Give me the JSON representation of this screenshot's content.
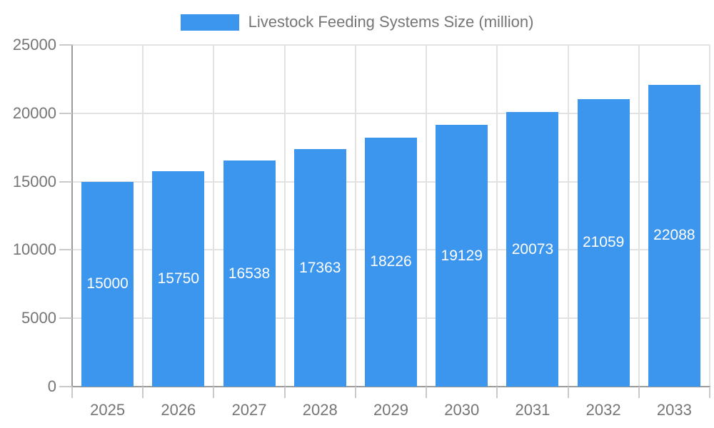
{
  "legend": {
    "label": "Livestock Feeding Systems Size (million)"
  },
  "chart_data": {
    "type": "bar",
    "title": "Livestock Feeding Systems Size (million)",
    "categories": [
      "2025",
      "2026",
      "2027",
      "2028",
      "2029",
      "2030",
      "2031",
      "2032",
      "2033"
    ],
    "series": [
      {
        "name": "Livestock Feeding Systems Size (million)",
        "values": [
          15000,
          15750,
          16538,
          17363,
          18226,
          19129,
          20073,
          21059,
          22088
        ]
      }
    ],
    "value_labels_shown": true,
    "value_label_position": "center-of-bar",
    "xlabel": "",
    "ylabel": "",
    "ylim": [
      0,
      25000
    ],
    "yticks": [
      0,
      5000,
      10000,
      15000,
      20000,
      25000
    ],
    "grid": true,
    "legend_position": "top-center"
  },
  "colors": {
    "bar_fill": "#3C96EE",
    "value_label_text": "#FFFFFF",
    "axis_text": "#757575",
    "legend_text": "#757575",
    "gridline": "#E2E2E2",
    "axis_line": "#9A9A9A",
    "tick_mark": "#C9C9C9",
    "background": "#FFFFFF"
  }
}
